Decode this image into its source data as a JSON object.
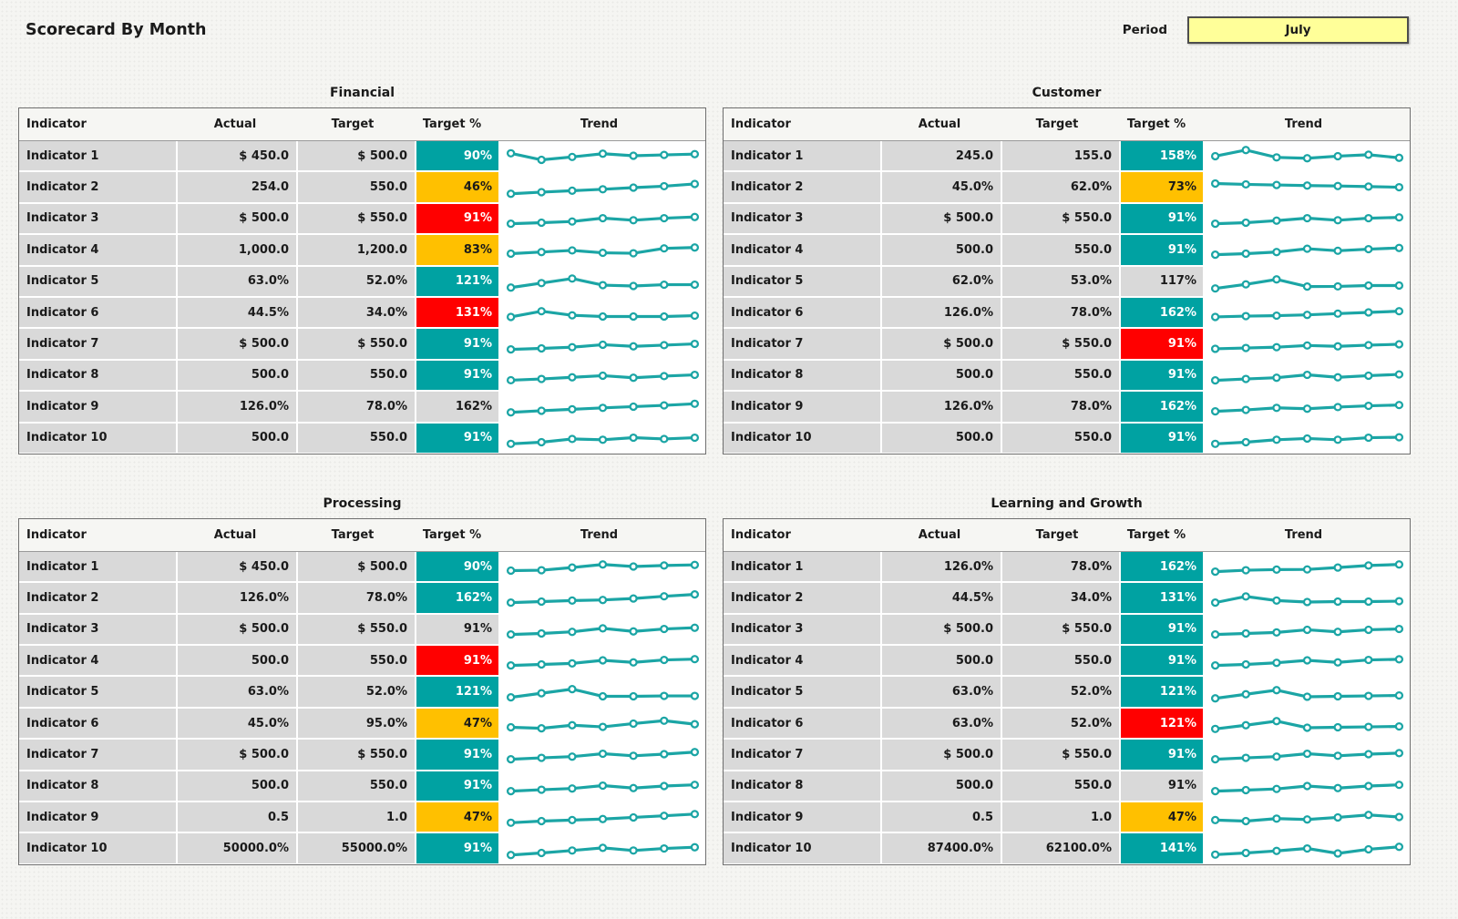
{
  "page": {
    "title": "Scorecard By Month",
    "period_label": "Period",
    "period_value": "July"
  },
  "colors": {
    "teal": "#00A2A2",
    "amber": "#FFC000",
    "red": "#FF0000",
    "row_gray": "#D9D9D9",
    "spark_line": "#1BA5A5",
    "period_bg": "#FFFF99"
  },
  "columns": [
    "Indicator",
    "Actual",
    "Target",
    "Target %",
    "Trend"
  ],
  "sections": [
    {
      "title": "Financial",
      "rows": [
        {
          "indicator": "Indicator 1",
          "actual": "$ 450.0",
          "target": "$ 500.0",
          "target_pct": "90%",
          "status": "teal",
          "trend": [
            62,
            30,
            44,
            60,
            50,
            54,
            58
          ]
        },
        {
          "indicator": "Indicator 2",
          "actual": "254.0",
          "target": "550.0",
          "target_pct": "46%",
          "status": "amber",
          "trend": [
            20,
            28,
            35,
            42,
            50,
            57,
            68
          ]
        },
        {
          "indicator": "Indicator 3",
          "actual": "$ 500.0",
          "target": "$ 550.0",
          "target_pct": "91%",
          "status": "red",
          "trend": [
            25,
            30,
            36,
            52,
            42,
            52,
            58
          ]
        },
        {
          "indicator": "Indicator 4",
          "actual": "1,000.0",
          "target": "1,200.0",
          "target_pct": "83%",
          "status": "amber",
          "trend": [
            30,
            38,
            46,
            34,
            32,
            56,
            60
          ]
        },
        {
          "indicator": "Indicator 5",
          "actual": "63.0%",
          "target": "52.0%",
          "target_pct": "121%",
          "status": "teal",
          "trend": [
            20,
            42,
            64,
            32,
            28,
            34,
            34
          ]
        },
        {
          "indicator": "Indicator 6",
          "actual": "44.5%",
          "target": "34.0%",
          "target_pct": "131%",
          "status": "red",
          "trend": [
            28,
            56,
            36,
            30,
            30,
            30,
            34
          ]
        },
        {
          "indicator": "Indicator 7",
          "actual": "$ 500.0",
          "target": "$ 550.0",
          "target_pct": "91%",
          "status": "teal",
          "trend": [
            25,
            30,
            36,
            48,
            40,
            46,
            52
          ]
        },
        {
          "indicator": "Indicator 8",
          "actual": "500.0",
          "target": "550.0",
          "target_pct": "91%",
          "status": "teal",
          "trend": [
            26,
            32,
            40,
            48,
            38,
            46,
            52
          ]
        },
        {
          "indicator": "Indicator 9",
          "actual": "126.0%",
          "target": "78.0%",
          "target_pct": "162%",
          "status": "none",
          "trend": [
            20,
            28,
            35,
            42,
            48,
            54,
            62
          ]
        },
        {
          "indicator": "Indicator 10",
          "actual": "500.0",
          "target": "550.0",
          "target_pct": "91%",
          "status": "teal",
          "trend": [
            22,
            30,
            46,
            42,
            52,
            46,
            52
          ]
        }
      ]
    },
    {
      "title": "Customer",
      "rows": [
        {
          "indicator": "Indicator 1",
          "actual": "245.0",
          "target": "155.0",
          "target_pct": "158%",
          "status": "teal",
          "trend": [
            48,
            78,
            42,
            38,
            48,
            55,
            40
          ]
        },
        {
          "indicator": "Indicator 2",
          "actual": "45.0%",
          "target": "62.0%",
          "target_pct": "73%",
          "status": "amber",
          "trend": [
            70,
            66,
            63,
            60,
            58,
            55,
            52
          ]
        },
        {
          "indicator": "Indicator 3",
          "actual": "$ 500.0",
          "target": "$ 550.0",
          "target_pct": "91%",
          "status": "teal",
          "trend": [
            25,
            30,
            40,
            52,
            42,
            52,
            56
          ]
        },
        {
          "indicator": "Indicator 4",
          "actual": "500.0",
          "target": "550.0",
          "target_pct": "91%",
          "status": "teal",
          "trend": [
            25,
            30,
            38,
            54,
            44,
            52,
            58
          ]
        },
        {
          "indicator": "Indicator 5",
          "actual": "62.0%",
          "target": "53.0%",
          "target_pct": "117%",
          "status": "none",
          "trend": [
            16,
            36,
            60,
            25,
            26,
            30,
            30
          ]
        },
        {
          "indicator": "Indicator 6",
          "actual": "126.0%",
          "target": "78.0%",
          "target_pct": "162%",
          "status": "teal",
          "trend": [
            28,
            32,
            34,
            38,
            44,
            50,
            56
          ]
        },
        {
          "indicator": "Indicator 7",
          "actual": "$ 500.0",
          "target": "$ 550.0",
          "target_pct": "91%",
          "status": "red",
          "trend": [
            28,
            32,
            36,
            44,
            40,
            46,
            50
          ]
        },
        {
          "indicator": "Indicator 8",
          "actual": "500.0",
          "target": "550.0",
          "target_pct": "91%",
          "status": "teal",
          "trend": [
            25,
            32,
            38,
            52,
            40,
            48,
            54
          ]
        },
        {
          "indicator": "Indicator 9",
          "actual": "126.0%",
          "target": "78.0%",
          "target_pct": "162%",
          "status": "teal",
          "trend": [
            25,
            32,
            42,
            38,
            46,
            52,
            56
          ]
        },
        {
          "indicator": "Indicator 10",
          "actual": "500.0",
          "target": "550.0",
          "target_pct": "91%",
          "status": "teal",
          "trend": [
            22,
            30,
            42,
            48,
            42,
            52,
            54
          ]
        }
      ]
    },
    {
      "title": "Processing",
      "rows": [
        {
          "indicator": "Indicator 1",
          "actual": "$ 450.0",
          "target": "$ 500.0",
          "target_pct": "90%",
          "status": "teal",
          "trend": [
            30,
            32,
            45,
            60,
            50,
            55,
            58
          ]
        },
        {
          "indicator": "Indicator 2",
          "actual": "126.0%",
          "target": "78.0%",
          "target_pct": "162%",
          "status": "teal",
          "trend": [
            25,
            30,
            35,
            38,
            45,
            56,
            65
          ]
        },
        {
          "indicator": "Indicator 3",
          "actual": "$ 500.0",
          "target": "$ 550.0",
          "target_pct": "91%",
          "status": "none",
          "trend": [
            25,
            30,
            38,
            55,
            40,
            52,
            58
          ]
        },
        {
          "indicator": "Indicator 4",
          "actual": "500.0",
          "target": "550.0",
          "target_pct": "91%",
          "status": "red",
          "trend": [
            25,
            30,
            35,
            50,
            40,
            52,
            56
          ]
        },
        {
          "indicator": "Indicator 5",
          "actual": "63.0%",
          "target": "52.0%",
          "target_pct": "121%",
          "status": "teal",
          "trend": [
            25,
            45,
            65,
            30,
            30,
            32,
            32
          ]
        },
        {
          "indicator": "Indicator 6",
          "actual": "45.0%",
          "target": "95.0%",
          "target_pct": "47%",
          "status": "amber",
          "trend": [
            30,
            25,
            40,
            32,
            48,
            62,
            45
          ]
        },
        {
          "indicator": "Indicator 7",
          "actual": "$ 500.0",
          "target": "$ 550.0",
          "target_pct": "91%",
          "status": "teal",
          "trend": [
            25,
            32,
            38,
            52,
            42,
            50,
            60
          ]
        },
        {
          "indicator": "Indicator 8",
          "actual": "500.0",
          "target": "550.0",
          "target_pct": "91%",
          "status": "teal",
          "trend": [
            25,
            32,
            38,
            52,
            40,
            50,
            56
          ]
        },
        {
          "indicator": "Indicator 9",
          "actual": "0.5",
          "target": "1.0",
          "target_pct": "47%",
          "status": "amber",
          "trend": [
            22,
            30,
            35,
            40,
            48,
            56,
            64
          ]
        },
        {
          "indicator": "Indicator 10",
          "actual": "50000.0%",
          "target": "55000.0%",
          "target_pct": "91%",
          "status": "teal",
          "trend": [
            20,
            30,
            42,
            55,
            42,
            52,
            58
          ]
        }
      ]
    },
    {
      "title": "Learning and Growth",
      "rows": [
        {
          "indicator": "Indicator 1",
          "actual": "126.0%",
          "target": "78.0%",
          "target_pct": "162%",
          "status": "teal",
          "trend": [
            25,
            32,
            35,
            36,
            45,
            55,
            60
          ]
        },
        {
          "indicator": "Indicator 2",
          "actual": "44.5%",
          "target": "34.0%",
          "target_pct": "131%",
          "status": "teal",
          "trend": [
            25,
            55,
            35,
            28,
            30,
            30,
            32
          ]
        },
        {
          "indicator": "Indicator 3",
          "actual": "$ 500.0",
          "target": "$ 550.0",
          "target_pct": "91%",
          "status": "teal",
          "trend": [
            25,
            30,
            35,
            48,
            38,
            48,
            52
          ]
        },
        {
          "indicator": "Indicator 4",
          "actual": "500.0",
          "target": "550.0",
          "target_pct": "91%",
          "status": "teal",
          "trend": [
            25,
            30,
            38,
            50,
            40,
            52,
            55
          ]
        },
        {
          "indicator": "Indicator 5",
          "actual": "63.0%",
          "target": "52.0%",
          "target_pct": "121%",
          "status": "teal",
          "trend": [
            20,
            40,
            60,
            28,
            30,
            32,
            34
          ]
        },
        {
          "indicator": "Indicator 6",
          "actual": "63.0%",
          "target": "52.0%",
          "target_pct": "121%",
          "status": "red",
          "trend": [
            22,
            40,
            60,
            28,
            30,
            32,
            34
          ]
        },
        {
          "indicator": "Indicator 7",
          "actual": "$ 500.0",
          "target": "$ 550.0",
          "target_pct": "91%",
          "status": "teal",
          "trend": [
            25,
            32,
            38,
            52,
            42,
            50,
            55
          ]
        },
        {
          "indicator": "Indicator 8",
          "actual": "500.0",
          "target": "550.0",
          "target_pct": "91%",
          "status": "none",
          "trend": [
            25,
            30,
            36,
            50,
            40,
            50,
            56
          ]
        },
        {
          "indicator": "Indicator 9",
          "actual": "0.5",
          "target": "1.0",
          "target_pct": "47%",
          "status": "amber",
          "trend": [
            35,
            30,
            42,
            38,
            48,
            60,
            50
          ]
        },
        {
          "indicator": "Indicator 10",
          "actual": "87400.0%",
          "target": "62100.0%",
          "target_pct": "141%",
          "status": "teal",
          "trend": [
            22,
            30,
            40,
            52,
            28,
            48,
            60
          ]
        }
      ]
    }
  ]
}
